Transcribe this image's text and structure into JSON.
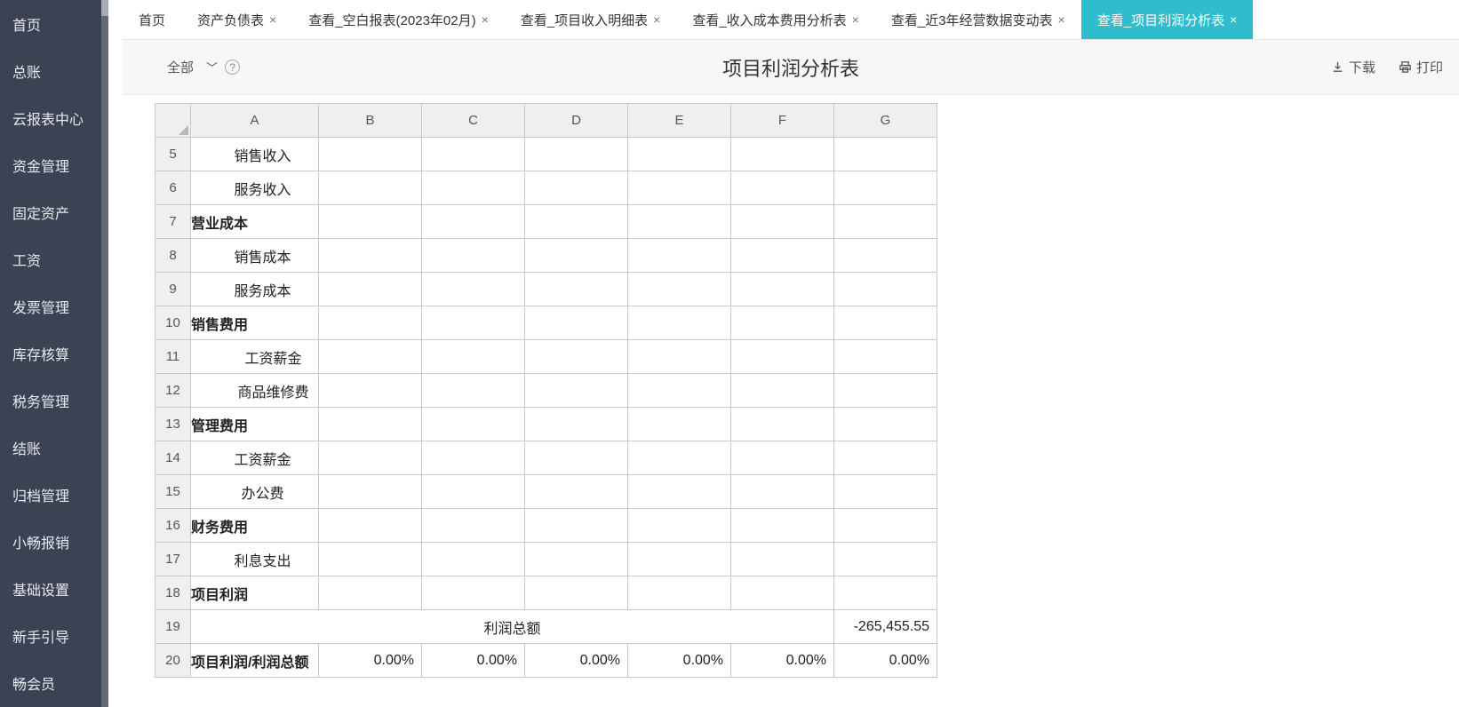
{
  "sidebar": {
    "items": [
      "首页",
      "总账",
      "云报表中心",
      "资金管理",
      "固定资产",
      "工资",
      "发票管理",
      "库存核算",
      "税务管理",
      "结账",
      "归档管理",
      "小畅报销",
      "基础设置",
      "新手引导",
      "畅会员"
    ]
  },
  "tabs": {
    "items": [
      {
        "label": "首页",
        "closable": false,
        "active": false
      },
      {
        "label": "资产负债表",
        "closable": true,
        "active": false
      },
      {
        "label": "查看_空白报表(2023年02月)",
        "closable": true,
        "active": false
      },
      {
        "label": "查看_项目收入明细表",
        "closable": true,
        "active": false
      },
      {
        "label": "查看_收入成本费用分析表",
        "closable": true,
        "active": false
      },
      {
        "label": "查看_近3年经营数据变动表",
        "closable": true,
        "active": false
      },
      {
        "label": "查看_项目利润分析表",
        "closable": true,
        "active": true
      }
    ]
  },
  "toolbar": {
    "filter_label": "全部",
    "help_glyph": "?",
    "title": "项目利润分析表",
    "download_label": "下载",
    "print_label": "打印"
  },
  "sheet": {
    "columns": [
      "A",
      "B",
      "C",
      "D",
      "E",
      "F",
      "G"
    ],
    "col_classes": [
      "cA",
      "cB",
      "cC",
      "cD",
      "cE",
      "cF",
      "cG"
    ],
    "rows": [
      {
        "num": 5,
        "label": "销售收入",
        "indent": 1,
        "bold": false,
        "cells": [
          "",
          "",
          "",
          "",
          "",
          ""
        ]
      },
      {
        "num": 6,
        "label": "服务收入",
        "indent": 1,
        "bold": false,
        "cells": [
          "",
          "",
          "",
          "",
          "",
          ""
        ]
      },
      {
        "num": 7,
        "label": "营业成本",
        "indent": 0,
        "bold": true,
        "cells": [
          "",
          "",
          "",
          "",
          "",
          ""
        ]
      },
      {
        "num": 8,
        "label": "销售成本",
        "indent": 1,
        "bold": false,
        "cells": [
          "",
          "",
          "",
          "",
          "",
          ""
        ]
      },
      {
        "num": 9,
        "label": "服务成本",
        "indent": 1,
        "bold": false,
        "cells": [
          "",
          "",
          "",
          "",
          "",
          ""
        ]
      },
      {
        "num": 10,
        "label": "销售费用",
        "indent": 0,
        "bold": true,
        "cells": [
          "",
          "",
          "",
          "",
          "",
          ""
        ]
      },
      {
        "num": 11,
        "label": "工资薪金",
        "indent": 2,
        "bold": false,
        "cells": [
          "",
          "",
          "",
          "",
          "",
          ""
        ]
      },
      {
        "num": 12,
        "label": "商品维修费",
        "indent": 2,
        "bold": false,
        "cells": [
          "",
          "",
          "",
          "",
          "",
          ""
        ]
      },
      {
        "num": 13,
        "label": "管理费用",
        "indent": 0,
        "bold": true,
        "cells": [
          "",
          "",
          "",
          "",
          "",
          ""
        ]
      },
      {
        "num": 14,
        "label": "工资薪金",
        "indent": 1,
        "bold": false,
        "cells": [
          "",
          "",
          "",
          "",
          "",
          ""
        ]
      },
      {
        "num": 15,
        "label": "办公费",
        "indent": 1,
        "bold": false,
        "cells": [
          "",
          "",
          "",
          "",
          "",
          ""
        ]
      },
      {
        "num": 16,
        "label": "财务费用",
        "indent": 0,
        "bold": true,
        "cells": [
          "",
          "",
          "",
          "",
          "",
          ""
        ]
      },
      {
        "num": 17,
        "label": "利息支出",
        "indent": 1,
        "bold": false,
        "cells": [
          "",
          "",
          "",
          "",
          "",
          ""
        ]
      },
      {
        "num": 18,
        "label": "项目利润",
        "indent": 0,
        "bold": true,
        "cells": [
          "",
          "",
          "",
          "",
          "",
          ""
        ]
      }
    ],
    "row19": {
      "num": 19,
      "merged_label": "利润总额",
      "value": "-265,455.55"
    },
    "row20": {
      "num": 20,
      "label": "项目利润/利润总额",
      "bold": true,
      "cells": [
        "0.00%",
        "0.00%",
        "0.00%",
        "0.00%",
        "0.00%",
        "0.00%"
      ]
    }
  },
  "colors": {
    "sidebar_bg": "#3a4253",
    "tab_active_bg": "#2fbdcd",
    "toolbar_bg": "#f7f7f8",
    "header_bg": "#efefef",
    "grid_border": "#c8c8c8"
  }
}
